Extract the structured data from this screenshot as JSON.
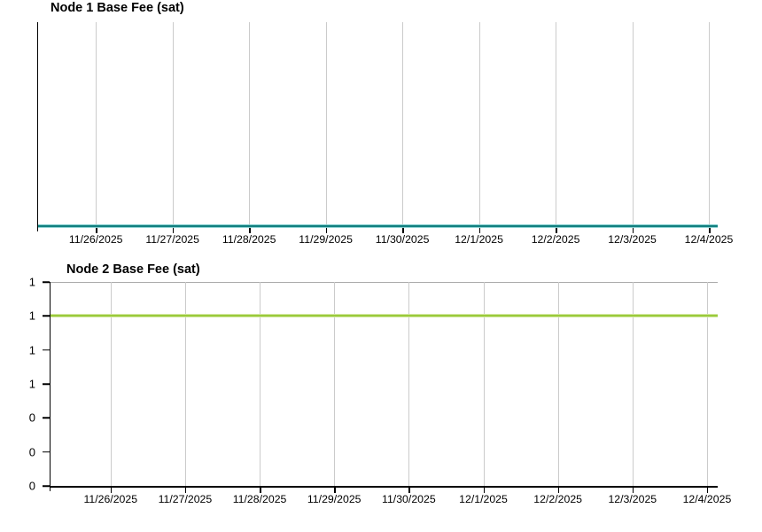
{
  "chart_data": [
    {
      "type": "line",
      "title": "Node 1 Base Fee (sat)",
      "x": [
        "11/26/2025",
        "11/27/2025",
        "11/28/2025",
        "11/29/2025",
        "11/30/2025",
        "12/1/2025",
        "12/2/2025",
        "12/3/2025",
        "12/4/2025"
      ],
      "series": [
        {
          "name": "Node 1 Base Fee",
          "values": [
            0,
            0,
            0,
            0,
            0,
            0,
            0,
            0,
            0
          ],
          "color": "#117f7f",
          "halo_color": "#86cfcf"
        }
      ],
      "xlabel": "",
      "ylabel": "",
      "y_tick_labels": [],
      "ylim": [
        0,
        1
      ],
      "grid": "vertical-only",
      "legend": "none"
    },
    {
      "type": "line",
      "title": "Node 2 Base Fee (sat)",
      "x": [
        "11/26/2025",
        "11/27/2025",
        "11/28/2025",
        "11/29/2025",
        "11/30/2025",
        "12/1/2025",
        "12/2/2025",
        "12/3/2025",
        "12/4/2025"
      ],
      "series": [
        {
          "name": "Node 2 Base Fee",
          "values": [
            1,
            1,
            1,
            1,
            1,
            1,
            1,
            1,
            1
          ],
          "color": "#9aca3b",
          "halo_color": "#d2e7a0"
        }
      ],
      "xlabel": "",
      "ylabel": "",
      "y_tick_labels": [
        "1",
        "1",
        "1",
        "1",
        "0",
        "0",
        "0"
      ],
      "ylim": [
        0,
        1.2
      ],
      "grid": "vertical-only",
      "legend": "none"
    }
  ]
}
